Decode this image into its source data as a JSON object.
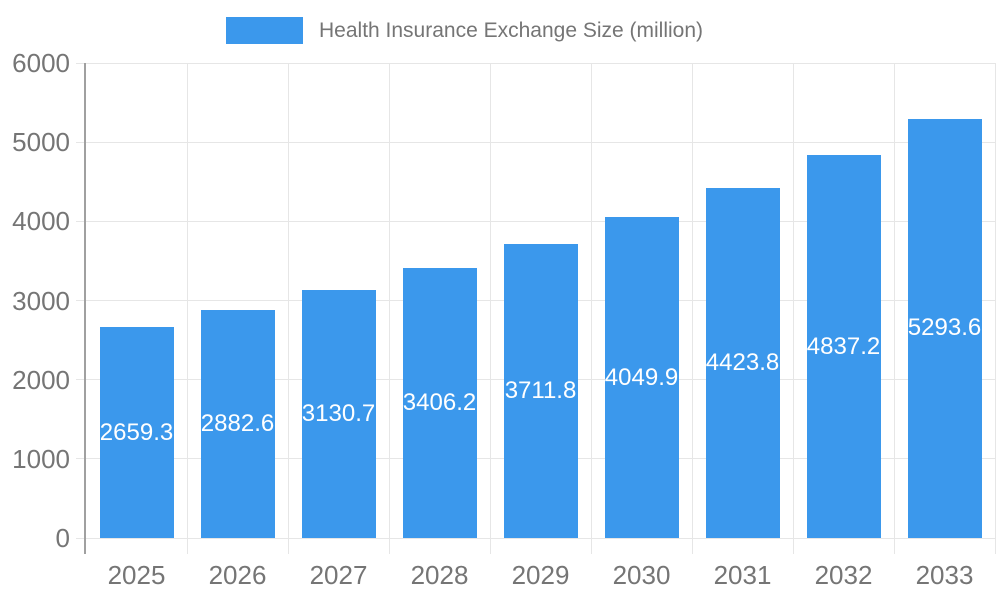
{
  "legend": {
    "label": "Health Insurance Exchange Size (million)"
  },
  "chart_data": {
    "type": "bar",
    "title": "Health Insurance Exchange Size (million)",
    "xlabel": "",
    "ylabel": "",
    "categories": [
      "2025",
      "2026",
      "2027",
      "2028",
      "2029",
      "2030",
      "2031",
      "2032",
      "2033"
    ],
    "series": [
      {
        "name": "Health Insurance Exchange Size (million)",
        "values": [
          2659.3,
          2882.6,
          3130.7,
          3406.2,
          3711.8,
          4049.9,
          4423.8,
          4837.2,
          5293.6
        ],
        "value_labels": [
          "2659.3",
          "2882.6",
          "3130.7",
          "3406.2",
          "3711.8",
          "4049.9",
          "4423.8",
          "4837.2",
          "5293.6"
        ]
      }
    ],
    "ylim": [
      0,
      6000
    ],
    "yticks": [
      0,
      1000,
      2000,
      3000,
      4000,
      5000,
      6000
    ],
    "ytick_labels": [
      "0",
      "1000",
      "2000",
      "3000",
      "4000",
      "5000",
      "6000"
    ],
    "grid": true,
    "legend_position": "top",
    "colors": {
      "bar": "#3B98EC",
      "grid": "#E6E6E6",
      "axis": "#A0A0A0",
      "tick_text": "#757575",
      "value_label_text": "#FFFFFF",
      "background": "#FFFFFF"
    }
  }
}
